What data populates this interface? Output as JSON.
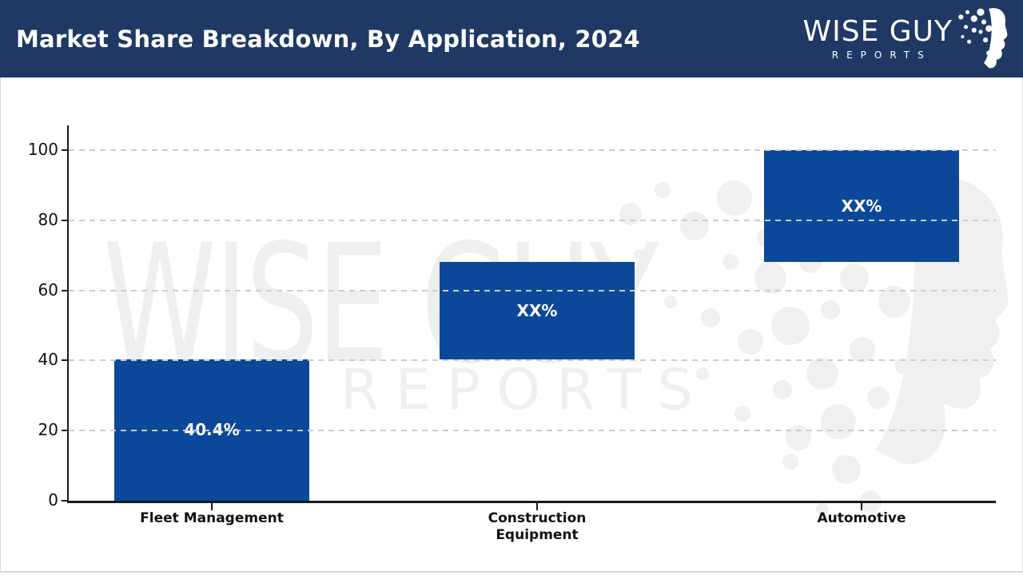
{
  "header": {
    "title": "Market Share Breakdown, By Application, 2024",
    "logo": {
      "name": "WISE GUY",
      "subname": "REPORTS"
    }
  },
  "watermark": {
    "line1": "WISE GUY",
    "line2": "REPORTS"
  },
  "chart_data": {
    "type": "bar",
    "variant": "floating-waterfall",
    "title": "Market Share Breakdown, By Application, 2024",
    "categories": [
      "Fleet Management",
      "Construction Equipment",
      "Automotive"
    ],
    "category_lines": [
      [
        "Fleet Management"
      ],
      [
        "Construction",
        "Equipment"
      ],
      [
        "Automotive"
      ]
    ],
    "segments": [
      {
        "category": "Fleet Management",
        "start": 0,
        "end": 40.4,
        "value": 40.4,
        "label": "40.4%"
      },
      {
        "category": "Construction Equipment",
        "start": 40.4,
        "end": 68.2,
        "value": 27.8,
        "label": "XX%"
      },
      {
        "category": "Automotive",
        "start": 68.2,
        "end": 100,
        "value": 31.8,
        "label": "XX%"
      }
    ],
    "ylim": [
      0,
      100
    ],
    "yticks": [
      0,
      20,
      40,
      60,
      80,
      100
    ],
    "xlabel": "",
    "ylabel": "",
    "legend": null,
    "grid": {
      "axis": "y",
      "style": "dashed",
      "above_bars": true
    },
    "colors": {
      "bar": "#0b4899",
      "bar_label": "#ffffff",
      "axis": "#1a1a1a",
      "tick_label": "#111111",
      "header_bg": "#1f3864",
      "gridline": "#cccccc",
      "watermark": "#efefef"
    }
  }
}
